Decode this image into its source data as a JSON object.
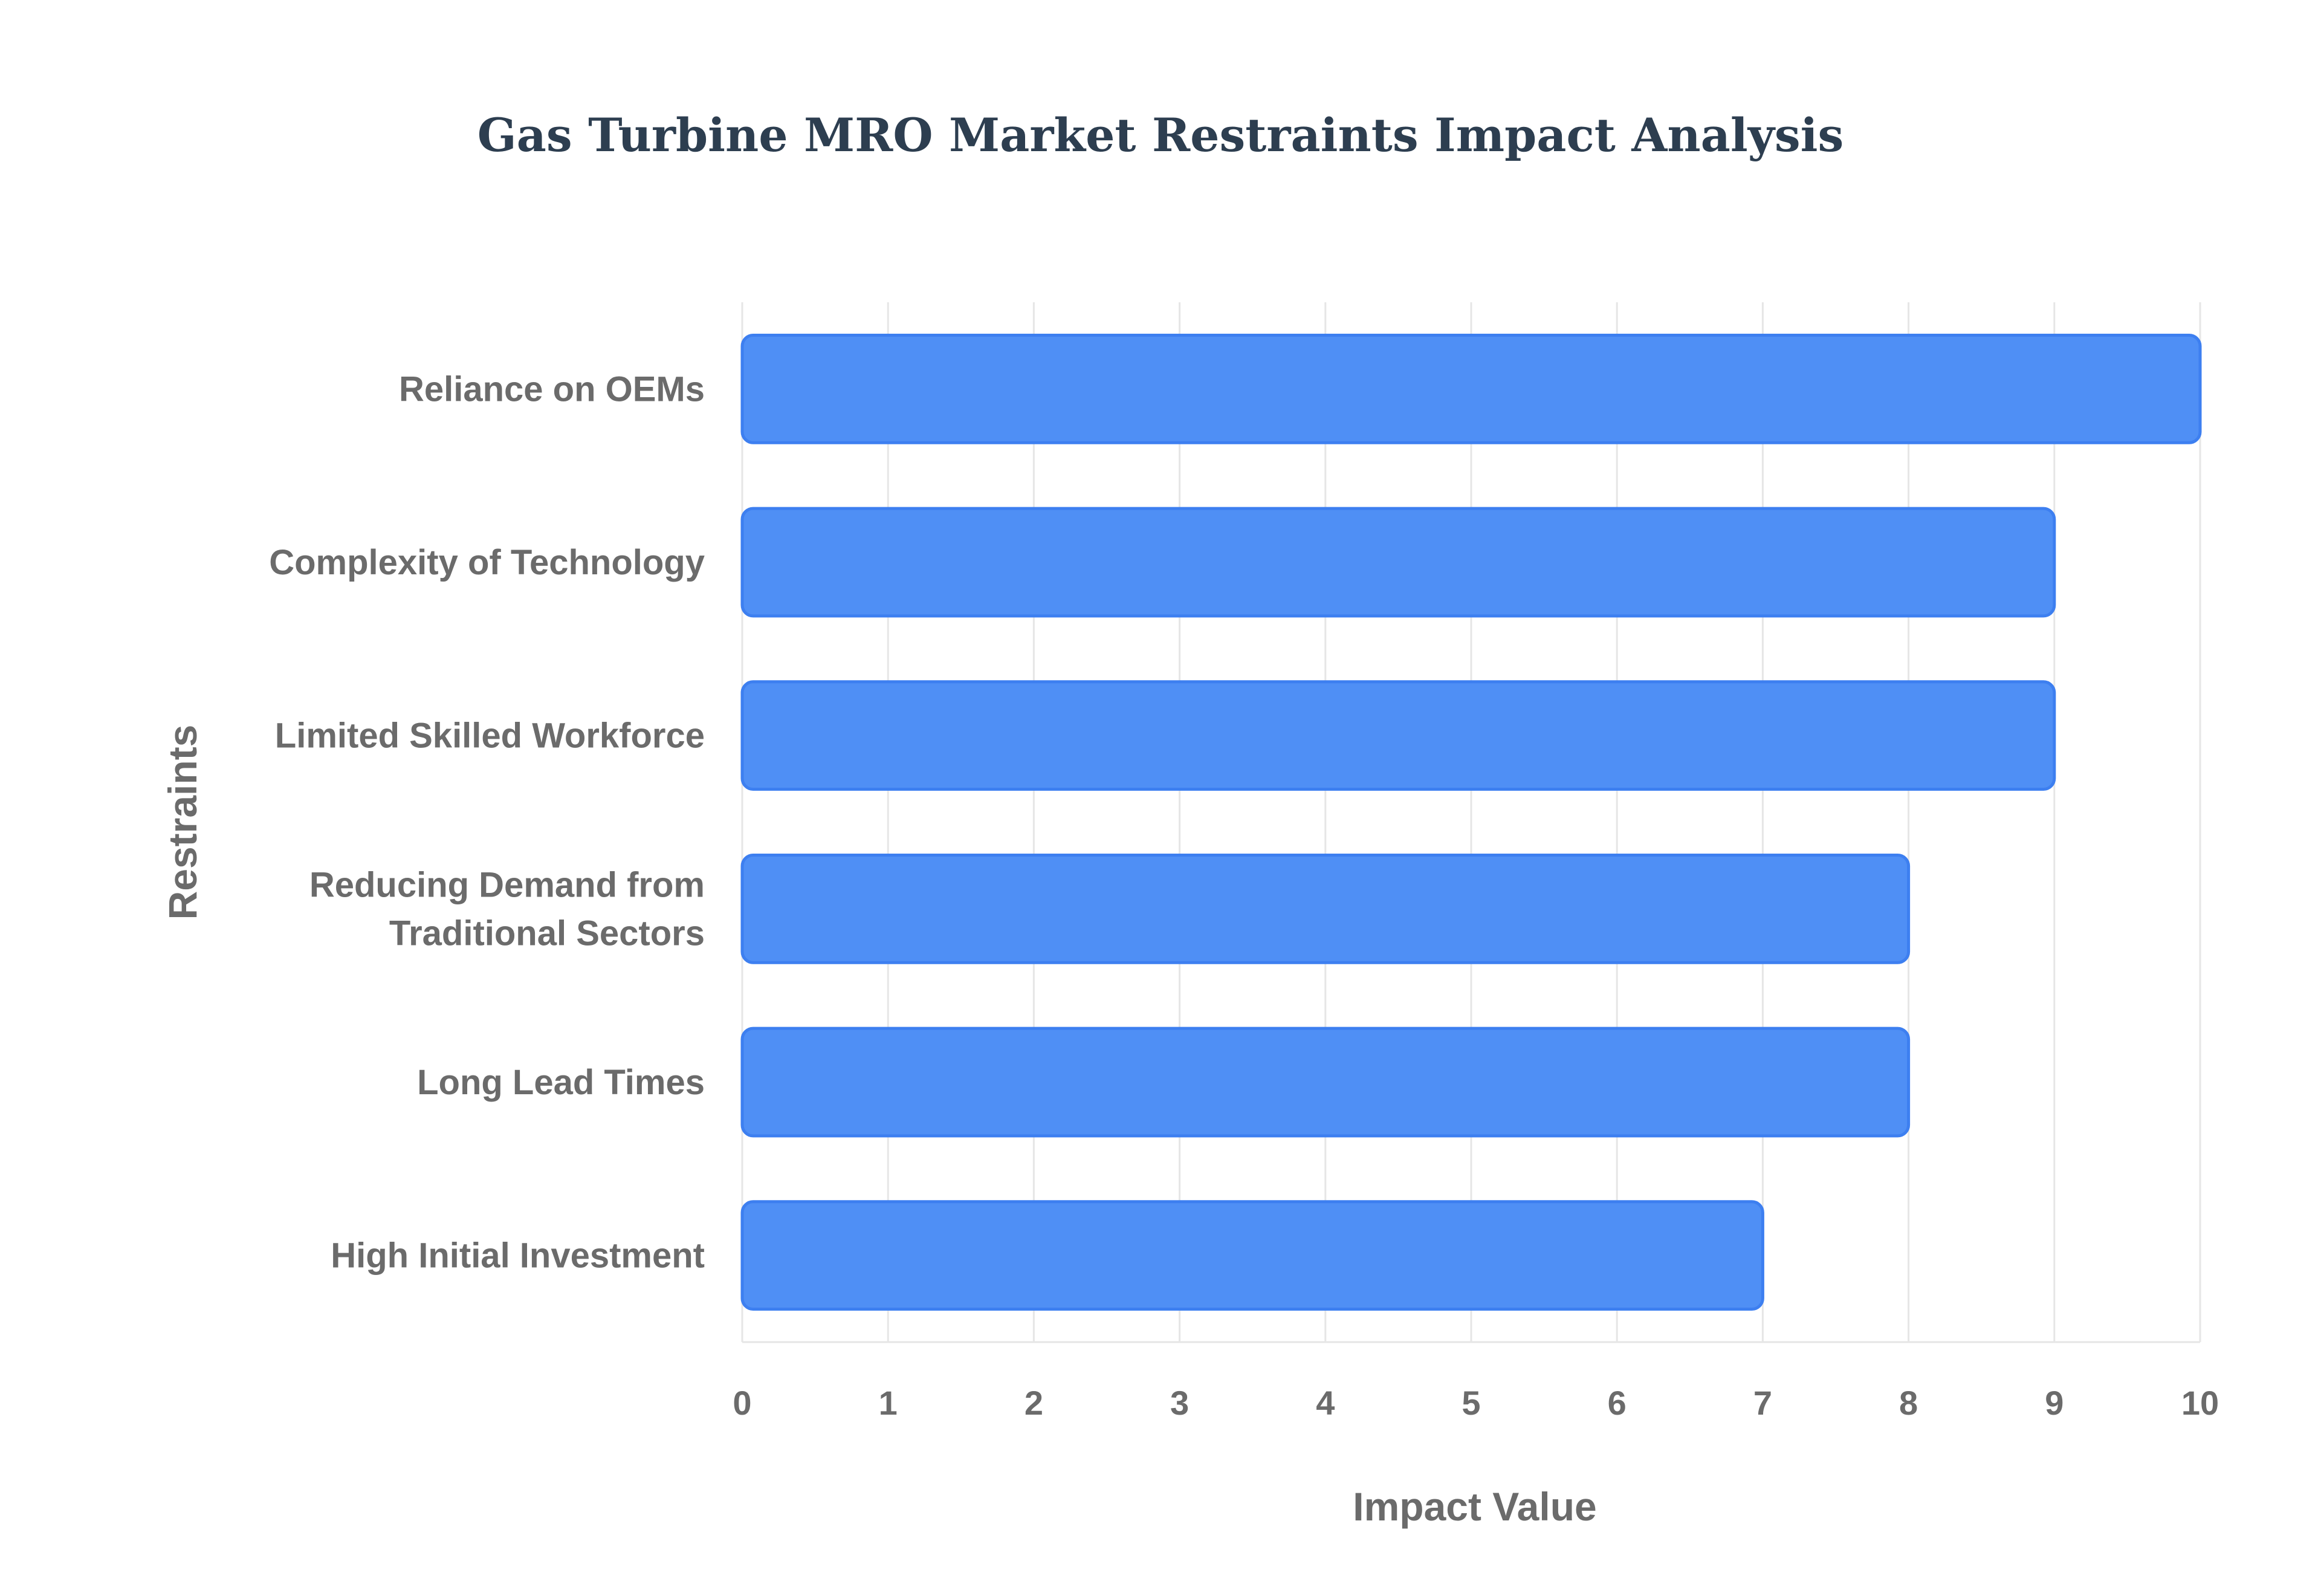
{
  "chart_data": {
    "type": "bar",
    "orientation": "horizontal",
    "title": "Gas Turbine MRO Market Restraints Impact Analysis",
    "xlabel": "Impact Value",
    "ylabel": "Restraints",
    "categories": [
      "Reliance on OEMs",
      "Complexity of Technology",
      "Limited Skilled Workforce",
      "Reducing Demand from Traditional Sectors",
      "Long Lead Times",
      "High Initial Investment"
    ],
    "category_label_lines": [
      [
        "Reliance on OEMs"
      ],
      [
        "Complexity of Technology"
      ],
      [
        "Limited Skilled Workforce"
      ],
      [
        "Reducing Demand from",
        "Traditional Sectors"
      ],
      [
        "Long Lead Times"
      ],
      [
        "High Initial Investment"
      ]
    ],
    "values": [
      10,
      9,
      9,
      8,
      8,
      7
    ],
    "xlim": [
      0,
      10
    ],
    "xticks": [
      "0",
      "1",
      "2",
      "3",
      "4",
      "5",
      "6",
      "7",
      "8",
      "9",
      "10"
    ],
    "grid": true,
    "legend": "none",
    "colors": {
      "bar_fill": "#4f8ff5",
      "bar_stroke": "#3d7ff0",
      "title": "#2d3e50",
      "text": "#6b6b6b",
      "grid": "#e6e6e6"
    }
  }
}
